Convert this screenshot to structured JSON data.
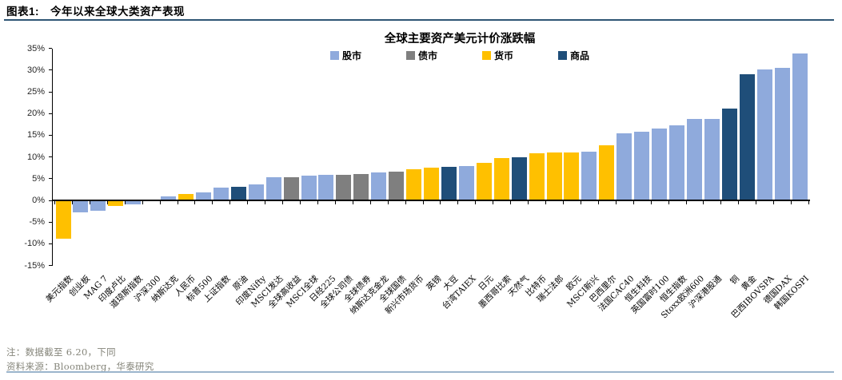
{
  "header": {
    "figure_label": "图表1:",
    "title": "今年以来全球大类资产表现"
  },
  "footer": {
    "note": "注：数据截至 6.20，下同",
    "source": "资料来源：Bloomberg，华泰研究"
  },
  "colors": {
    "header_rule": "#2E5574",
    "bottom_rule": "#9BB5CC",
    "axis": "#000000"
  },
  "chart_data": {
    "type": "bar",
    "title": "全球主要资产美元计价涨跌幅",
    "ylabel": "",
    "xlabel": "",
    "ylim": [
      -15,
      35
    ],
    "ytick_step": 5,
    "ytick_labels": [
      "35%",
      "30%",
      "25%",
      "20%",
      "15%",
      "10%",
      "5%",
      "0%",
      "-5%",
      "-10%",
      "-15%"
    ],
    "grid": false,
    "legend_position": "top-center",
    "legend": [
      {
        "label": "股市",
        "key": "stock",
        "color": "#8FAADC"
      },
      {
        "label": "债市",
        "key": "bond",
        "color": "#7F7F7F"
      },
      {
        "label": "货币",
        "key": "currency",
        "color": "#FFC000"
      },
      {
        "label": "商品",
        "key": "commodity",
        "color": "#1F4E79"
      }
    ],
    "series": [
      {
        "category": "美元指数",
        "group": "currency",
        "value": -8.8
      },
      {
        "category": "创业板",
        "group": "stock",
        "value": -2.8
      },
      {
        "category": "MAG 7",
        "group": "stock",
        "value": -2.4
      },
      {
        "category": "印度卢比",
        "group": "currency",
        "value": -1.2
      },
      {
        "category": "道琼斯指数",
        "group": "stock",
        "value": -1.0
      },
      {
        "category": "沪深300",
        "group": "stock",
        "value": 0.1
      },
      {
        "category": "纳斯达克",
        "group": "stock",
        "value": 1.0
      },
      {
        "category": "人民币",
        "group": "currency",
        "value": 1.4
      },
      {
        "category": "标普500",
        "group": "stock",
        "value": 1.8
      },
      {
        "category": "上证指数",
        "group": "stock",
        "value": 2.9
      },
      {
        "category": "原油",
        "group": "commodity",
        "value": 3.1
      },
      {
        "category": "印度Nifty",
        "group": "stock",
        "value": 3.6
      },
      {
        "category": "MSCI发达",
        "group": "stock",
        "value": 5.3
      },
      {
        "category": "全球高收益",
        "group": "bond",
        "value": 5.4
      },
      {
        "category": "MSCI全球",
        "group": "stock",
        "value": 5.7
      },
      {
        "category": "日经225",
        "group": "stock",
        "value": 5.8
      },
      {
        "category": "全球公司债",
        "group": "bond",
        "value": 5.9
      },
      {
        "category": "全球债券",
        "group": "bond",
        "value": 6.0
      },
      {
        "category": "纳斯达克金龙",
        "group": "stock",
        "value": 6.4
      },
      {
        "category": "全球国债",
        "group": "bond",
        "value": 6.6
      },
      {
        "category": "新兴市场货币",
        "group": "currency",
        "value": 7.2
      },
      {
        "category": "英镑",
        "group": "currency",
        "value": 7.5
      },
      {
        "category": "大豆",
        "group": "commodity",
        "value": 7.8
      },
      {
        "category": "台湾TAIEX",
        "group": "stock",
        "value": 7.9
      },
      {
        "category": "日元",
        "group": "currency",
        "value": 8.6
      },
      {
        "category": "墨西哥比索",
        "group": "currency",
        "value": 9.7
      },
      {
        "category": "天然气",
        "group": "commodity",
        "value": 9.9
      },
      {
        "category": "比特币",
        "group": "currency",
        "value": 10.9
      },
      {
        "category": "瑞士法郎",
        "group": "currency",
        "value": 11.0
      },
      {
        "category": "欧元",
        "group": "currency",
        "value": 11.1
      },
      {
        "category": "MSCI新兴",
        "group": "stock",
        "value": 11.2
      },
      {
        "category": "巴西里尔",
        "group": "currency",
        "value": 12.6
      },
      {
        "category": "法国CAC40",
        "group": "stock",
        "value": 15.4
      },
      {
        "category": "恒生科技",
        "group": "stock",
        "value": 15.8
      },
      {
        "category": "英国富时100",
        "group": "stock",
        "value": 16.5
      },
      {
        "category": "恒生指数",
        "group": "stock",
        "value": 17.3
      },
      {
        "category": "Stoxx欧洲600",
        "group": "stock",
        "value": 18.7
      },
      {
        "category": "沪深港股通",
        "group": "stock",
        "value": 18.8
      },
      {
        "category": "铜",
        "group": "commodity",
        "value": 21.1
      },
      {
        "category": "黄金",
        "group": "commodity",
        "value": 29.1
      },
      {
        "category": "巴西IBOVSPA",
        "group": "stock",
        "value": 30.2
      },
      {
        "category": "德国DAX",
        "group": "stock",
        "value": 30.6
      },
      {
        "category": "韩国KOSPI",
        "group": "stock",
        "value": 33.9
      }
    ]
  }
}
